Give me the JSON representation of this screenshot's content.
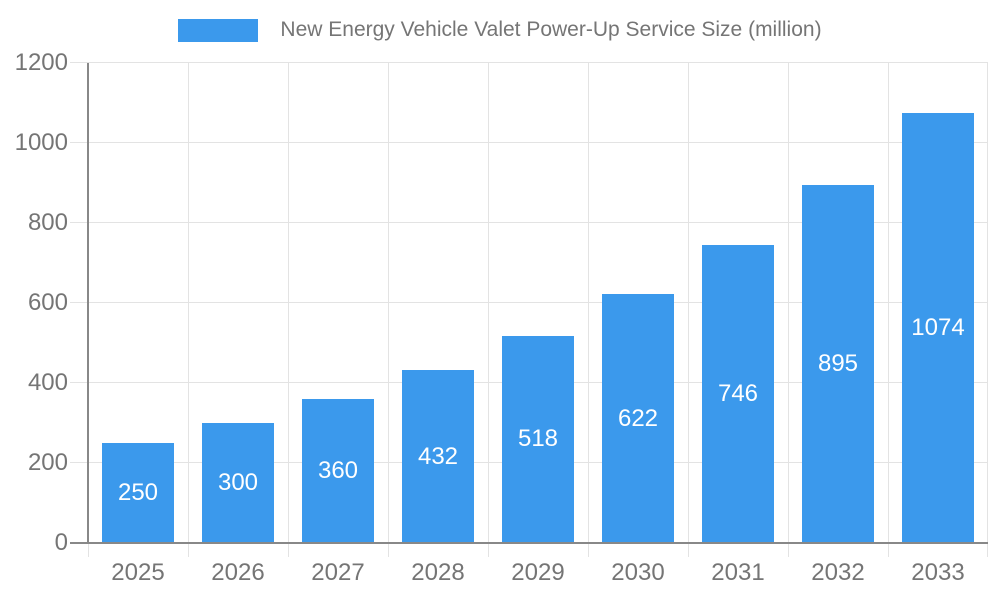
{
  "legend": {
    "label": "New Energy Vehicle Valet Power-Up Service Size (million)"
  },
  "chart_data": {
    "type": "bar",
    "title": "New Energy Vehicle Valet Power-Up Service Size (million)",
    "categories": [
      "2025",
      "2026",
      "2027",
      "2028",
      "2029",
      "2030",
      "2031",
      "2032",
      "2033"
    ],
    "values": [
      250,
      300,
      360,
      432,
      518,
      622,
      746,
      895,
      1074
    ],
    "series": [
      {
        "name": "New Energy Vehicle Valet Power-Up Service Size (million)",
        "values": [
          250,
          300,
          360,
          432,
          518,
          622,
          746,
          895,
          1074
        ]
      }
    ],
    "xlabel": "",
    "ylabel": "",
    "ylim": [
      0,
      1200
    ],
    "yticks": [
      0,
      200,
      400,
      600,
      800,
      1000,
      1200
    ],
    "grid": true,
    "legend_position": "top",
    "bar_labels_visible": true,
    "colors": {
      "bar": "#3B99EC",
      "bar_label": "#FFFFFF",
      "axis_text": "#757575",
      "axis_line": "#888888",
      "gridline": "#E3E3E3",
      "background": "#FFFFFF"
    }
  }
}
